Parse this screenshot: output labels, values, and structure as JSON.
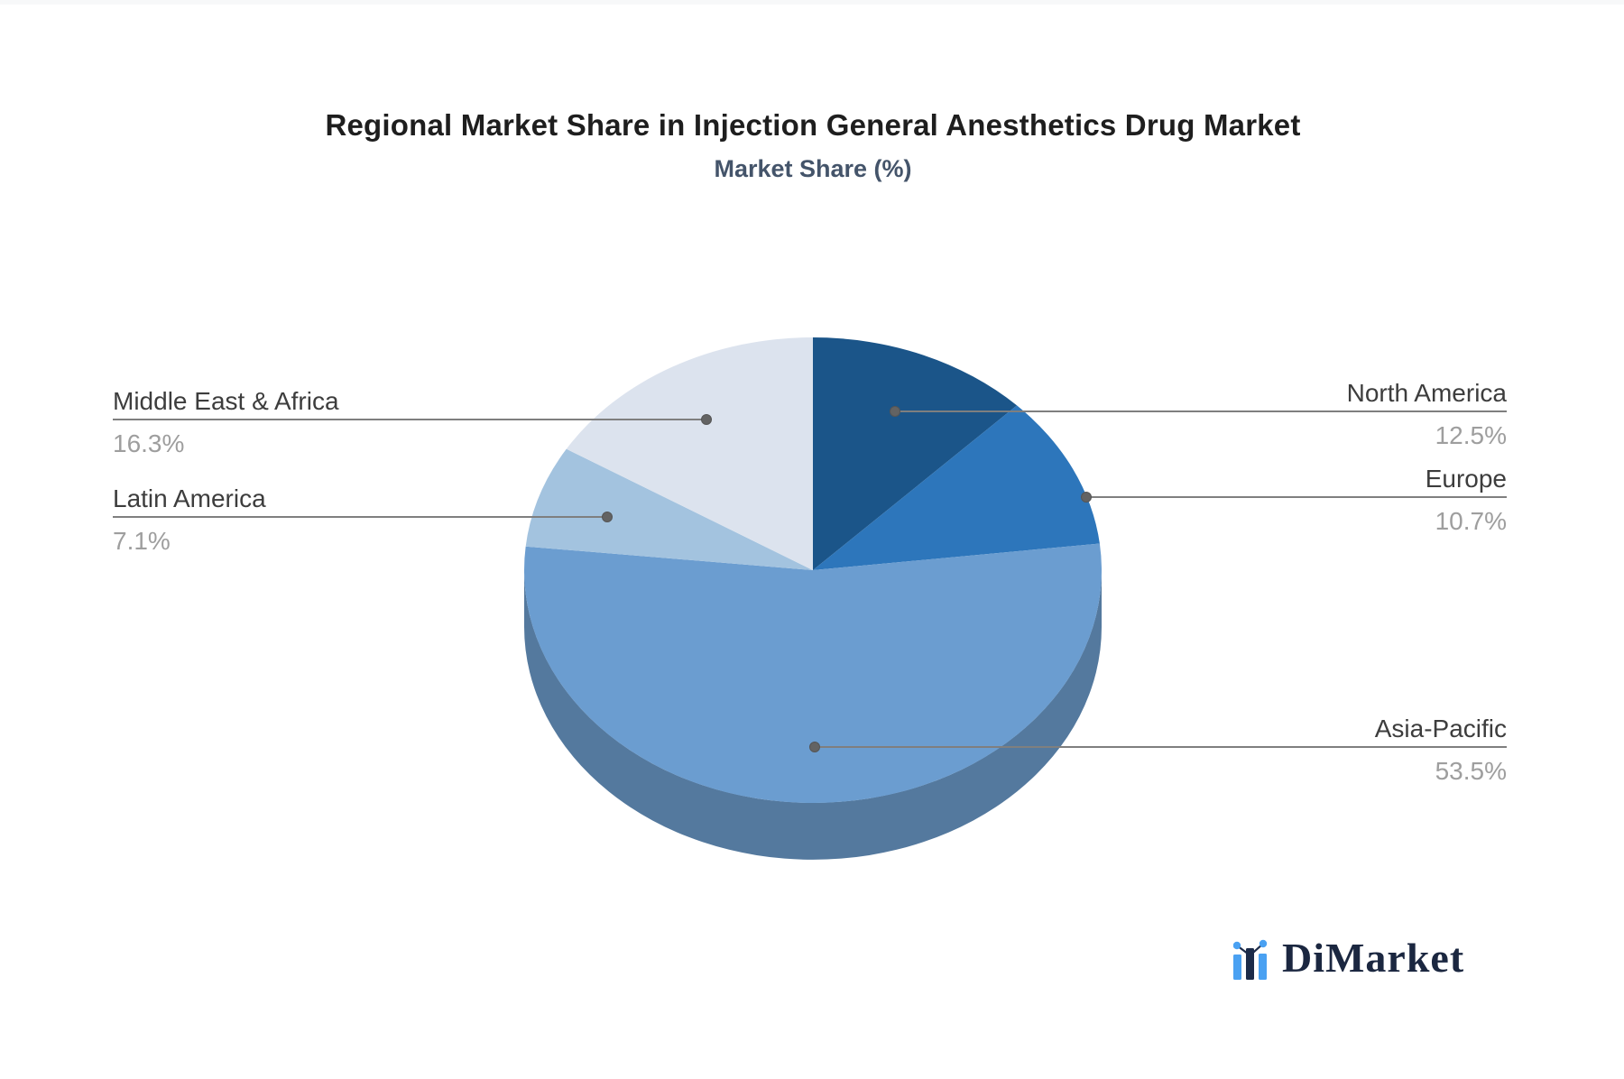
{
  "page": {
    "background": "#ffffff",
    "top_strip_color": "#f7f8f9"
  },
  "chart_data": {
    "type": "pie",
    "style": "3d-pie",
    "title": "Regional Market Share in Injection General Anesthetics Drug Market",
    "subtitle": "Market Share (%)",
    "title_color": "#1e1e1e",
    "subtitle_color": "#44546a",
    "start_angle_deg": 0,
    "direction": "clockwise",
    "legend_position": "outside-leader-labels",
    "grid": false,
    "slices": [
      {
        "label": "North America",
        "value": 12.5,
        "display_value": "12.5%",
        "color": "#1b5589",
        "label_side": "right"
      },
      {
        "label": "Europe",
        "value": 10.7,
        "display_value": "10.7%",
        "color": "#2d76bb",
        "label_side": "right"
      },
      {
        "label": "Asia-Pacific",
        "value": 53.5,
        "display_value": "53.5%",
        "color": "#6b9dd0",
        "label_side": "right"
      },
      {
        "label": "Latin America",
        "value": 7.1,
        "display_value": "7.1%",
        "color": "#a3c3df",
        "label_side": "left"
      },
      {
        "label": "Middle East & Africa",
        "value": 16.3,
        "display_value": "16.3%",
        "color": "#dce3ee",
        "label_side": "left"
      }
    ],
    "side_color": "#54799e",
    "label_color": "#3d3d3d",
    "value_color": "#9e9e9e",
    "leader_line_color": "#7f7f7f",
    "leader_dot_color": "#636363"
  },
  "branding": {
    "logo_text": "DiMarket",
    "logo_icon": "bar-chart-sparkline-icon",
    "logo_text_color": "#1b2740",
    "logo_bar_color": "#4aa1f2",
    "logo_dark_color": "#1c2b49"
  }
}
